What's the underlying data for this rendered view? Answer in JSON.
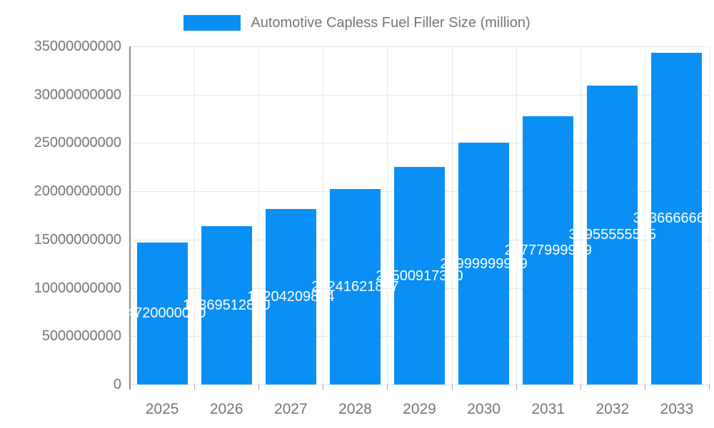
{
  "legend": {
    "label": "Automotive Capless Fuel Filler Size (million)"
  },
  "chart_data": {
    "type": "bar",
    "title": "Automotive Capless Fuel Filler Size (million)",
    "xlabel": "",
    "ylabel": "",
    "categories": [
      "2025",
      "2026",
      "2027",
      "2028",
      "2029",
      "2030",
      "2031",
      "2032",
      "2033"
    ],
    "values": [
      14720000000,
      16369512800,
      18204209804,
      20241621897,
      22500917360,
      24999999999,
      27777999999,
      30955555555,
      34366666667
    ],
    "value_labels": [
      "14720000000",
      "16369512800",
      "18204209804",
      "20241621897",
      "22500917360",
      "24999999999",
      "27777999999",
      "30955555555",
      "34366666667"
    ],
    "ylim": [
      0,
      35000000000
    ],
    "ytick_interval": 5000000000,
    "yticks": [
      "0",
      "5000000000",
      "10000000000",
      "15000000000",
      "20000000000",
      "25000000000",
      "30000000000",
      "35000000000"
    ],
    "grid": true,
    "legend_position": "top",
    "bar_color": "#0a8ff5",
    "data_label_color": "#ffffff",
    "axis_text_color": "#757575",
    "grid_color": "#e6e6e6"
  }
}
